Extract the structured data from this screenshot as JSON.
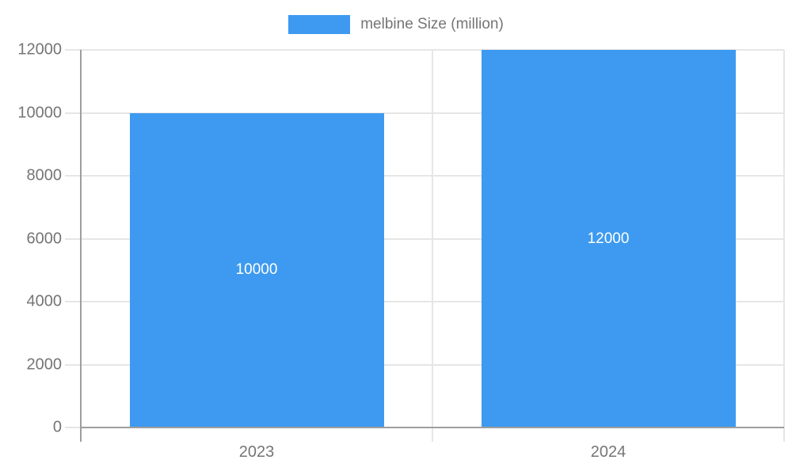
{
  "legend": {
    "label": "melbine Size (million)"
  },
  "colors": {
    "bar": "#3D9AF0",
    "grid": "#e6e6e6",
    "axis": "#9e9e9e",
    "tick_text": "#757575",
    "bar_label_text": "#ffffff",
    "background": "#ffffff"
  },
  "chart_data": {
    "type": "bar",
    "title": "",
    "xlabel": "",
    "ylabel": "",
    "categories": [
      "2023",
      "2024"
    ],
    "series": [
      {
        "name": "melbine Size (million)",
        "values": [
          10000,
          12000
        ]
      }
    ],
    "data_labels": [
      "10000",
      "12000"
    ],
    "ylim": [
      0,
      12000
    ],
    "yticks": [
      0,
      2000,
      4000,
      6000,
      8000,
      10000,
      12000
    ],
    "grid": true,
    "legend_position": "top"
  }
}
